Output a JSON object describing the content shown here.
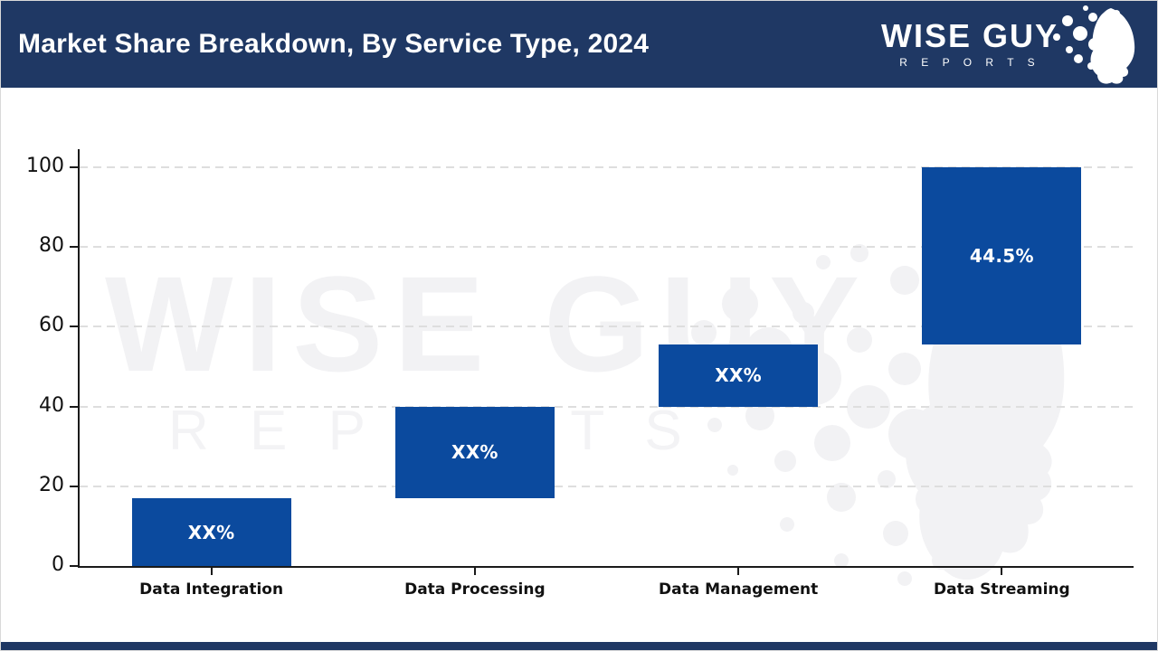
{
  "header": {
    "title": "Market Share Breakdown, By Service Type, 2024",
    "bg_color": "#1f3864",
    "logo": {
      "name": "WISE GUY",
      "tagline": "R E P O R T S"
    }
  },
  "watermark": {
    "line1": "WISE GUY",
    "line2": "R E P O R T S"
  },
  "chart_data": {
    "type": "bar",
    "variant": "waterfall",
    "title": "Market Share Breakdown, By Service Type, 2024",
    "categories": [
      "Data Integration",
      "Data Processing",
      "Data Management",
      "Data Streaming"
    ],
    "segments": [
      {
        "category": "Data Integration",
        "start": 0,
        "end": 17,
        "value": 17,
        "label": "XX%"
      },
      {
        "category": "Data Processing",
        "start": 17,
        "end": 40,
        "value": 23,
        "label": "XX%"
      },
      {
        "category": "Data Management",
        "start": 40,
        "end": 55.5,
        "value": 15.5,
        "label": "XX%"
      },
      {
        "category": "Data Streaming",
        "start": 55.5,
        "end": 100,
        "value": 44.5,
        "label": "44.5%"
      }
    ],
    "xlabel": "",
    "ylabel": "",
    "ylim": [
      0,
      100
    ],
    "yticks": [
      0,
      20,
      40,
      60,
      80,
      100
    ],
    "grid": "horizontal-dashed",
    "legend": "none",
    "bar_color": "#0b4a9e",
    "bar_label_color": "#ffffff",
    "axis_color": "#1a1a1a",
    "grid_color": "#dedede"
  },
  "footer": {
    "bg_color": "#1f3864"
  }
}
